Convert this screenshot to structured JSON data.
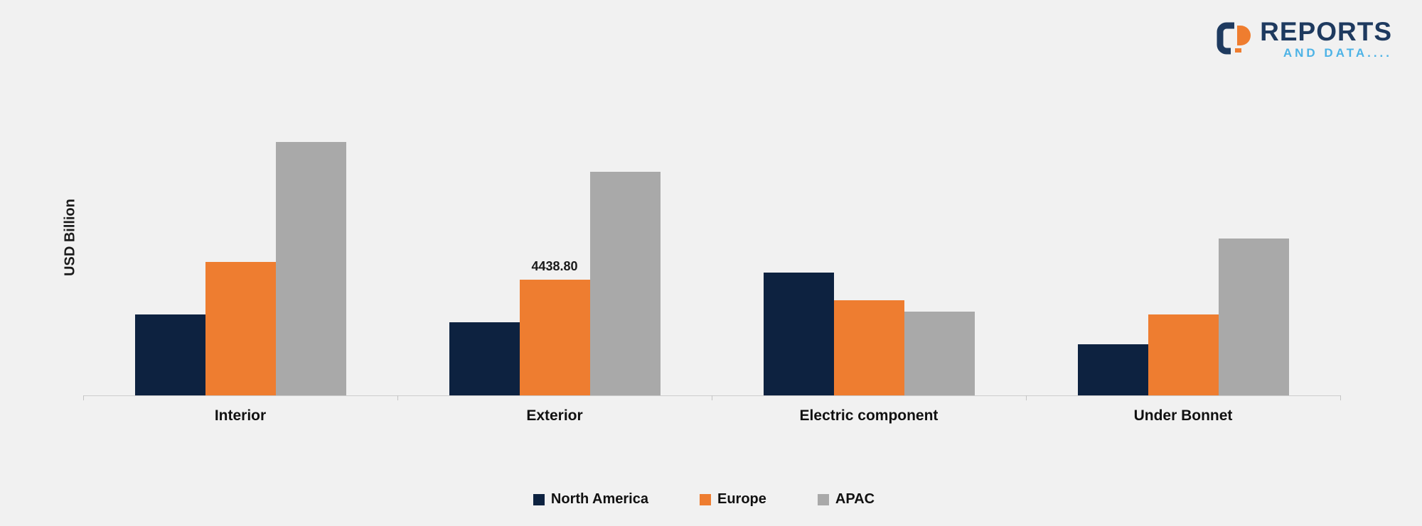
{
  "page": {
    "background": "#f1f1f1"
  },
  "logo": {
    "reports": "REPORTS",
    "and_data": "AND DATA...."
  },
  "chart_data": {
    "type": "bar",
    "title": "",
    "xlabel": "",
    "ylabel": "USD Billion",
    "categories": [
      "Interior",
      "Exterior",
      "Electric component",
      "Under Bonnet"
    ],
    "series": [
      {
        "name": "North America",
        "color": "#0d2240",
        "values": [
          3100,
          2800,
          4700,
          1950
        ]
      },
      {
        "name": "Europe",
        "color": "#ee7d30",
        "values": [
          5100,
          4438.8,
          3650,
          3100
        ]
      },
      {
        "name": "APAC",
        "color": "#a9a9a9",
        "values": [
          9700,
          8550,
          3200,
          6000
        ]
      }
    ],
    "data_labels": [
      {
        "category": "Exterior",
        "series": "Europe",
        "text": "4438.80"
      }
    ],
    "ylim": [
      0,
      10000
    ],
    "grid": false,
    "legend_position": "bottom",
    "axis_line_color": "#cdcdcd"
  }
}
